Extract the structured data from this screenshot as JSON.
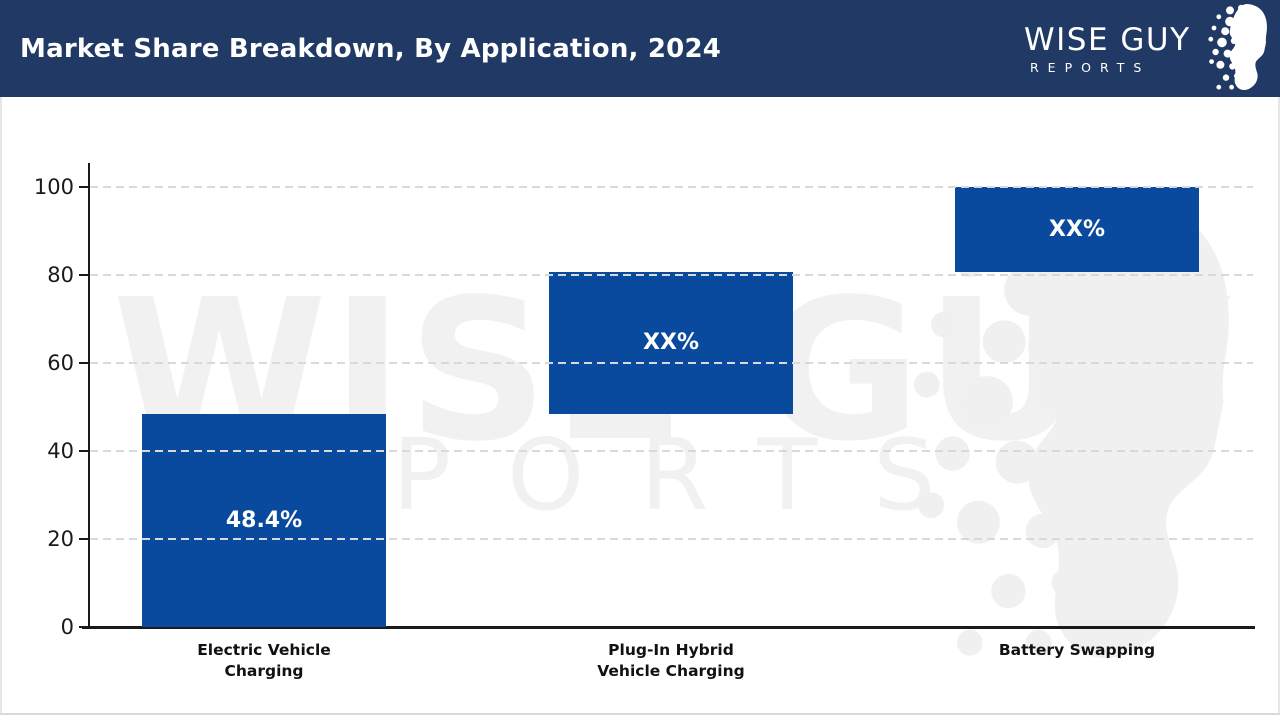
{
  "header": {
    "title": "Market Share Breakdown, By Application, 2024",
    "logo": {
      "brand": "WISE GUY",
      "sub": "REPORTS"
    }
  },
  "watermark": {
    "brand": "WISE GUY",
    "sub": "REPORTS"
  },
  "chart_data": {
    "type": "bar",
    "subtype": "waterfall-breakdown",
    "title": "Market Share Breakdown, By Application, 2024",
    "categories": [
      [
        "Electric Vehicle",
        "Charging"
      ],
      [
        "Plug-In Hybrid",
        "Vehicle Charging"
      ],
      [
        "Battery Swapping"
      ]
    ],
    "segments": [
      {
        "category": "Electric Vehicle Charging",
        "start": 0,
        "end": 48.4,
        "label": "48.4%"
      },
      {
        "category": "Plug-In Hybrid Vehicle Charging",
        "start": 48.4,
        "end": 80.6,
        "label": "XX%"
      },
      {
        "category": "Battery Swapping",
        "start": 80.6,
        "end": 100,
        "label": "XX%"
      }
    ],
    "yticks": [
      0,
      20,
      40,
      60,
      80,
      100
    ],
    "ylim": [
      0,
      105
    ],
    "grid": "dashed-horizontal",
    "legend": "none"
  },
  "colors": {
    "header_bg": "#203A65",
    "bar": "#0A4A9E",
    "bar_label": "#ffffff",
    "gridline": "#d9d9d9",
    "watermark": "#f1f1f2"
  }
}
